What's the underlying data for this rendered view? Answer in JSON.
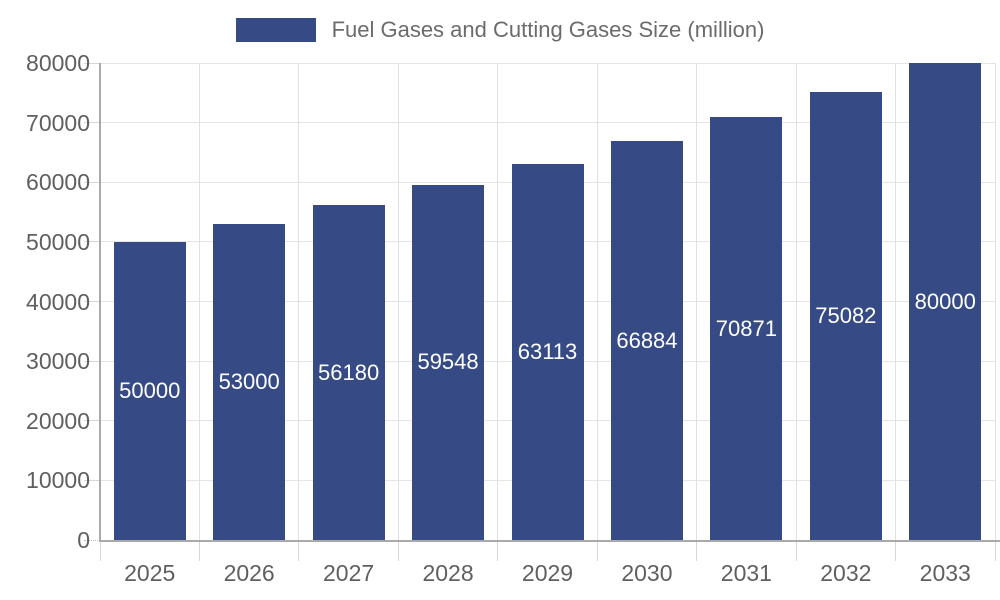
{
  "chart_data": {
    "type": "bar",
    "title": "",
    "legend": {
      "label": "Fuel Gases and Cutting Gases Size (million)",
      "position": "top-center"
    },
    "categories": [
      "2025",
      "2026",
      "2027",
      "2028",
      "2029",
      "2030",
      "2031",
      "2032",
      "2033"
    ],
    "series": [
      {
        "name": "Fuel Gases and Cutting Gases Size (million)",
        "values": [
          50000,
          53000,
          56180,
          59548,
          63113,
          66884,
          70871,
          75082,
          80000
        ]
      }
    ],
    "bar_value_labels": [
      "50000",
      "53000",
      "56180",
      "59548",
      "63113",
      "66884",
      "70871",
      "75082",
      "80000"
    ],
    "xlabel": "",
    "ylabel": "",
    "ylim": [
      0,
      80000
    ],
    "ytick_labels": [
      "0",
      "10000",
      "20000",
      "30000",
      "40000",
      "50000",
      "60000",
      "70000",
      "80000"
    ],
    "grid": "horizontal-and-vertical",
    "colors": {
      "bar": "#364b85",
      "bar_label": "#ffffff",
      "axis_label": "#5f5f5f",
      "legend_text": "#6b6b6b",
      "axis_line": "#a9a9a9",
      "grid_line": "#e5e5e5",
      "tick": "#d7d7d7",
      "background": "#ffffff"
    }
  }
}
